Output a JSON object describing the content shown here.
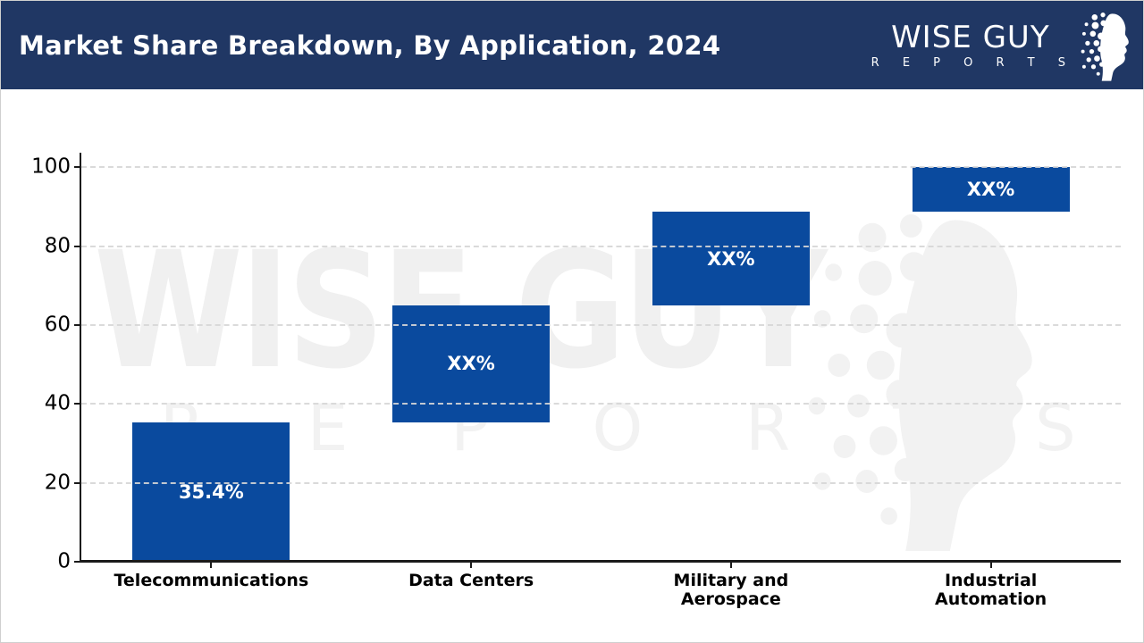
{
  "header": {
    "title": "Market Share Breakdown, By Application, 2024",
    "bg_color": "#203764"
  },
  "logo": {
    "line1": "WISE GUY",
    "line2": "R E P O R T S"
  },
  "watermark": {
    "line1": "WISE GUY",
    "line2": "R E P O R T S"
  },
  "chart_data": {
    "type": "bar",
    "subtype": "waterfall",
    "title": "Market Share Breakdown, By Application, 2024",
    "categories": [
      "Telecommunications",
      "Data Centers",
      "Military and Aerospace",
      "Industrial Automation"
    ],
    "categories_display": [
      "Telecommunications",
      "Data Centers",
      "Military and\nAerospace",
      "Industrial\nAutomation"
    ],
    "segments": [
      {
        "category": "Telecommunications",
        "start": 0,
        "end": 35.4,
        "label": "35.4%"
      },
      {
        "category": "Data Centers",
        "start": 35.4,
        "end": 65.0,
        "label": "XX%"
      },
      {
        "category": "Military and Aerospace",
        "start": 65.0,
        "end": 88.7,
        "label": "XX%"
      },
      {
        "category": "Industrial Automation",
        "start": 88.7,
        "end": 100,
        "label": "XX%"
      }
    ],
    "xlabel": "",
    "ylabel": "",
    "ylim": [
      0,
      100
    ],
    "yticks": [
      0,
      20,
      40,
      60,
      80,
      100
    ],
    "grid": true,
    "grid_style": "dashed",
    "legend": "none",
    "bar_color": "#0a4a9e",
    "label_color": "#ffffff",
    "axis_color": "#1a1a1a",
    "header_bg_color": "#203764",
    "watermark_color": "#f0f0f0"
  }
}
